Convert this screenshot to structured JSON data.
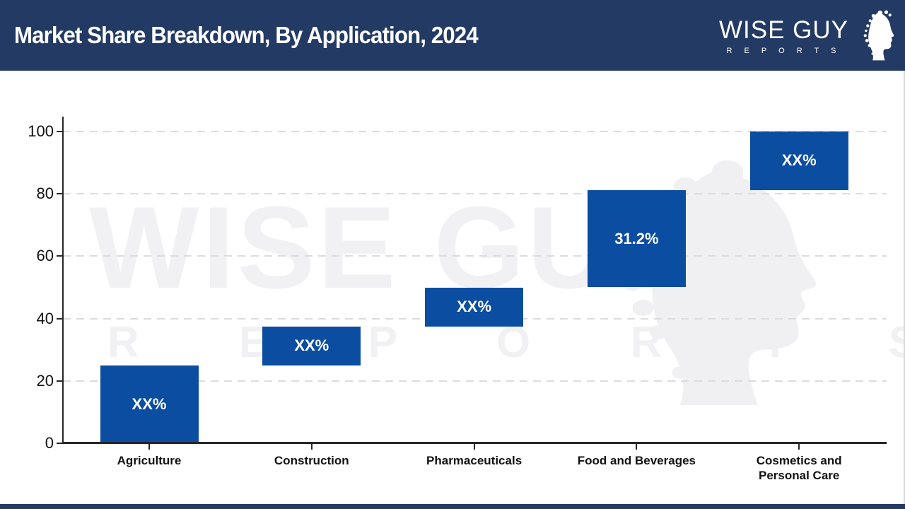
{
  "header": {
    "title": "Market Share Breakdown, By Application, 2024",
    "logo": {
      "line1": "WISE GUY",
      "line2": "R E P O R T S"
    }
  },
  "watermark": {
    "line1": "WISE GUY",
    "line2": "R E P O R T S"
  },
  "colors": {
    "header_bg": "#223a64",
    "bar": "#0b4da1",
    "bar_label": "#ffffff",
    "axis": "#262626",
    "gridline": "#dcdcdc",
    "tick_text": "#111111",
    "watermark": "#f1f1f3"
  },
  "chart_data": {
    "type": "bar",
    "subtype": "waterfall",
    "title": "Market Share Breakdown, By Application, 2024",
    "xlabel": "",
    "ylabel": "",
    "ylim": [
      0,
      100
    ],
    "y_ticks": [
      0,
      20,
      40,
      60,
      80,
      100
    ],
    "grid": "horizontal-dashed",
    "legend": "none",
    "categories": [
      "Agriculture",
      "Construction",
      "Pharmaceuticals",
      "Food and Beverages",
      "Cosmetics and Personal Care"
    ],
    "x_label_lines": [
      [
        "Agriculture"
      ],
      [
        "Construction"
      ],
      [
        "Pharmaceuticals"
      ],
      [
        "Food and Beverages"
      ],
      [
        "Cosmetics and",
        "Personal Care"
      ]
    ],
    "segments": [
      {
        "category": "Agriculture",
        "start": 0,
        "end": 25,
        "value": 25,
        "label": "XX%"
      },
      {
        "category": "Construction",
        "start": 25,
        "end": 37.5,
        "value": 12.5,
        "label": "XX%"
      },
      {
        "category": "Pharmaceuticals",
        "start": 37.5,
        "end": 50,
        "value": 12.5,
        "label": "XX%"
      },
      {
        "category": "Food and Beverages",
        "start": 50,
        "end": 81.2,
        "value": 31.2,
        "label": "31.2%"
      },
      {
        "category": "Cosmetics and Personal Care",
        "start": 81.2,
        "end": 100,
        "value": 18.8,
        "label": "XX%"
      }
    ]
  }
}
